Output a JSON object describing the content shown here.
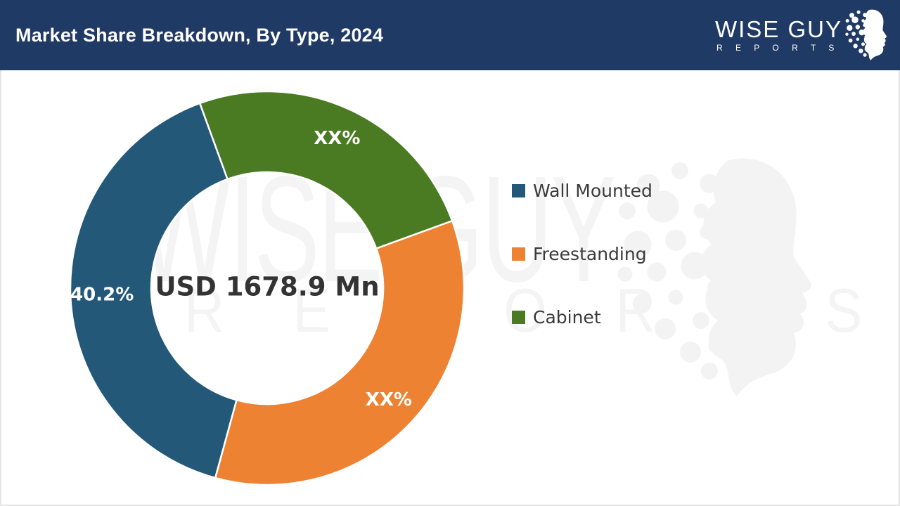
{
  "header": {
    "title": "Market Share Breakdown, By Type, 2024",
    "logo": {
      "line1": "WISE GUY",
      "line2": "R E P O R T S"
    }
  },
  "watermark": {
    "line1": "WISE GUY",
    "line2": "R E P O R T S"
  },
  "chart_data": {
    "type": "pie",
    "subtype": "donut",
    "title": "Market Share Breakdown, By Type, 2024",
    "center_label": "USD 1678.9 Mn",
    "legend_position": "right",
    "direction": "counterclockwise",
    "start_angle_deg": 110,
    "categories": [
      "Wall Mounted",
      "Freestanding",
      "Cabinet"
    ],
    "segments": [
      {
        "name": "Wall Mounted",
        "label": "40.2%",
        "value_pct": 40.2,
        "color": "#235879"
      },
      {
        "name": "Freestanding",
        "label": "XX%",
        "value_pct": 34.8,
        "color": "#ED8233"
      },
      {
        "name": "Cabinet",
        "label": "XX%",
        "value_pct": 25.0,
        "color": "#4A7A22"
      }
    ]
  },
  "colors": {
    "header_bg": "#203A66",
    "slice_label_text": "#FFFFFF",
    "center_text": "#333333",
    "legend_text": "#3A3A3A",
    "watermark": "#F4F4F4"
  }
}
